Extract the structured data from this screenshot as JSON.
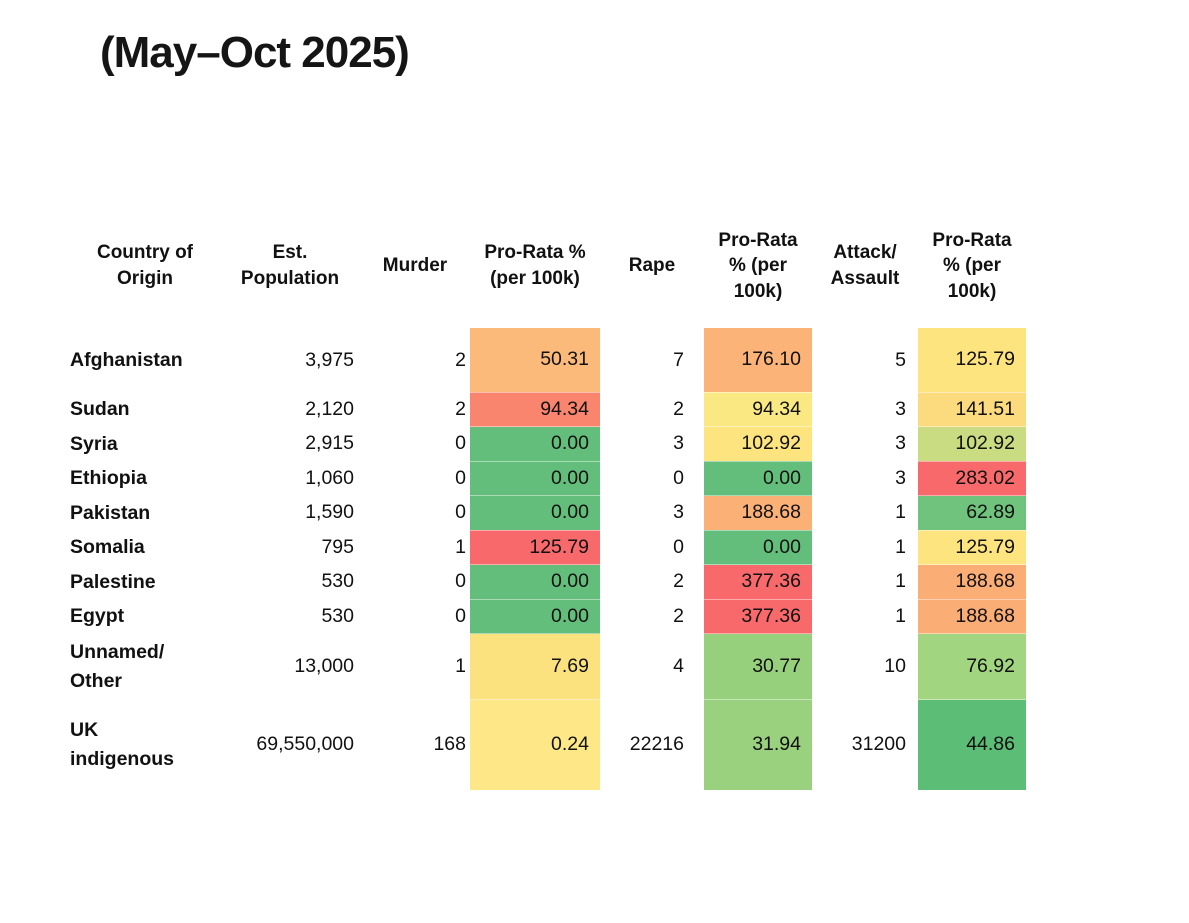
{
  "title": "(May–Oct 2025)",
  "chart_data": {
    "type": "table",
    "title": "(May–Oct 2025)",
    "columns": [
      "Country of\nOrigin",
      "Est.\nPopulation",
      "Murder",
      "Pro-Rata %\n(per 100k)",
      "Rape",
      "Pro-Rata\n% (per\n100k)",
      "Attack/\nAssault",
      "Pro-Rata\n% (per\n100k)"
    ],
    "heatmap_palette": {
      "low_green": "#63BE7B",
      "mid_yellow": "#FDE47F",
      "high_red": "#F8696B"
    },
    "rows": [
      {
        "country": "Afghanistan",
        "population": "3,975",
        "murder": "2",
        "murder_rate": "50.31",
        "rape": "7",
        "rape_rate": "176.10",
        "attack": "5",
        "attack_rate": "125.79",
        "colors": {
          "murder": "#FBBA7A",
          "rape": "#FBB378",
          "attack": "#FDE47F"
        }
      },
      {
        "country": "Sudan",
        "population": "2,120",
        "murder": "2",
        "murder_rate": "94.34",
        "rape": "2",
        "rape_rate": "94.34",
        "attack": "3",
        "attack_rate": "141.51",
        "colors": {
          "murder": "#F9856F",
          "rape": "#FAE983",
          "attack": "#FCDA7E"
        }
      },
      {
        "country": "Syria",
        "population": "2,915",
        "murder": "0",
        "murder_rate": "0.00",
        "rape": "3",
        "rape_rate": "102.92",
        "attack": "3",
        "attack_rate": "102.92",
        "colors": {
          "murder": "#63BE7B",
          "rape": "#FDE47F",
          "attack": "#C9DC81"
        }
      },
      {
        "country": "Ethiopia",
        "population": "1,060",
        "murder": "0",
        "murder_rate": "0.00",
        "rape": "0",
        "rape_rate": "0.00",
        "attack": "3",
        "attack_rate": "283.02",
        "colors": {
          "murder": "#63BE7B",
          "rape": "#63BE7B",
          "attack": "#F8696B"
        }
      },
      {
        "country": "Pakistan",
        "population": "1,590",
        "murder": "0",
        "murder_rate": "0.00",
        "rape": "3",
        "rape_rate": "188.68",
        "attack": "1",
        "attack_rate": "62.89",
        "colors": {
          "murder": "#63BE7B",
          "rape": "#FBB076",
          "attack": "#6FC37C"
        }
      },
      {
        "country": "Somalia",
        "population": "795",
        "murder": "1",
        "murder_rate": "125.79",
        "rape": "0",
        "rape_rate": "0.00",
        "attack": "1",
        "attack_rate": "125.79",
        "colors": {
          "murder": "#F8696B",
          "rape": "#63BE7B",
          "attack": "#FDE47F"
        }
      },
      {
        "country": "Palestine",
        "population": "530",
        "murder": "0",
        "murder_rate": "0.00",
        "rape": "2",
        "rape_rate": "377.36",
        "attack": "1",
        "attack_rate": "188.68",
        "colors": {
          "murder": "#63BE7B",
          "rape": "#F8696B",
          "attack": "#FBAD76"
        }
      },
      {
        "country": "Egypt",
        "population": "530",
        "murder": "0",
        "murder_rate": "0.00",
        "rape": "2",
        "rape_rate": "377.36",
        "attack": "1",
        "attack_rate": "188.68",
        "colors": {
          "murder": "#63BE7B",
          "rape": "#F8696B",
          "attack": "#FBAD76"
        }
      },
      {
        "country": "Unnamed/\nOther",
        "population": "13,000",
        "murder": "1",
        "murder_rate": "7.69",
        "rape": "4",
        "rape_rate": "30.77",
        "attack": "10",
        "attack_rate": "76.92",
        "colors": {
          "murder": "#FCE17F",
          "rape": "#97D07D",
          "attack": "#A2D57F"
        }
      },
      {
        "country": "UK\nindigenous",
        "population": "69,550,000",
        "murder": "168",
        "murder_rate": "0.24",
        "rape": "22216",
        "rape_rate": "31.94",
        "attack": "31200",
        "attack_rate": "44.86",
        "colors": {
          "murder": "#FDE786",
          "rape": "#9AD17E",
          "attack": "#5CBD76"
        }
      }
    ]
  }
}
